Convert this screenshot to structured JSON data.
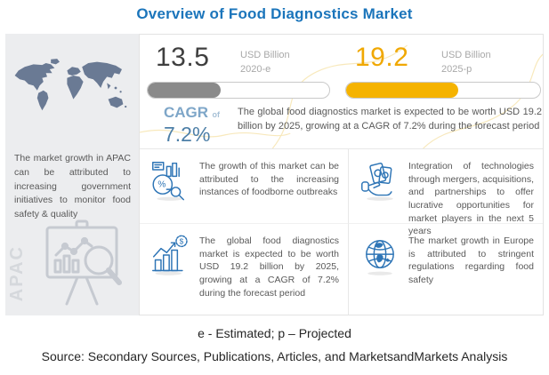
{
  "title": "Overview of Food Diagnostics Market",
  "left_panel": {
    "description": "The market growth in APAC can be attributed to increasing government initiatives to monitor food safety & quality",
    "region_label": "APAC"
  },
  "stats": {
    "current": {
      "value": "13.5",
      "unit": "USD Billion",
      "year": "2020-e",
      "bar_percent": 40
    },
    "projected": {
      "value": "19.2",
      "unit": "USD Billion",
      "year": "2025-p",
      "bar_percent": 58
    },
    "cagr": {
      "label": "CAGR",
      "connector": "of",
      "value": "7.2%"
    },
    "summary": "The global food diagnostics market is expected to be worth USD 19.2 billion by 2025, growing at a CAGR of 7.2% during the forecast period"
  },
  "insights": [
    {
      "icon": "chart-percent-magnifier-icon",
      "text": "The growth of this market can be attributed to the increasing instances of foodborne outbreaks"
    },
    {
      "icon": "money-hand-icon",
      "text": "Integration of technologies through mergers, acquisitions, and partnerships to offer lucrative opportunities for market players in the next 5 years"
    },
    {
      "icon": "growth-chart-dollar-icon",
      "text": "The global food diagnostics market is expected to be worth USD 19.2 billion by 2025, growing at a CAGR of 7.2% during the forecast period"
    },
    {
      "icon": "globe-icon",
      "text": "The market growth in Europe is attributed to stringent regulations regarding food safety"
    }
  ],
  "footer": {
    "legend": "e - Estimated; p – Projected",
    "source": "Source: Secondary Sources, Publications, Articles, and MarketsandMarkets Analysis"
  },
  "colors": {
    "title_blue": "#1B75BB",
    "gold": "#F0A802",
    "gold_bar": "#F5B301",
    "gray_bar": "#8A8A8A",
    "steel_blue": "#4D7FA7",
    "steel_blue_light": "#7EA6C8",
    "icon_blue": "#2E75B6",
    "panel_gray": "#ECEDEF",
    "map_gray_blue": "#6A7A94",
    "body_text": "#595959"
  },
  "chart_data": {
    "type": "bar",
    "categories": [
      "2020-e",
      "2025-p"
    ],
    "values": [
      13.5,
      19.2
    ],
    "title": "Overview of Food Diagnostics Market",
    "ylabel": "USD Billion",
    "units": "USD Billion",
    "cagr_percent": 7.2,
    "annotations": [
      "CAGR of 7.2% during the forecast period",
      "e - Estimated; p – Projected"
    ]
  }
}
